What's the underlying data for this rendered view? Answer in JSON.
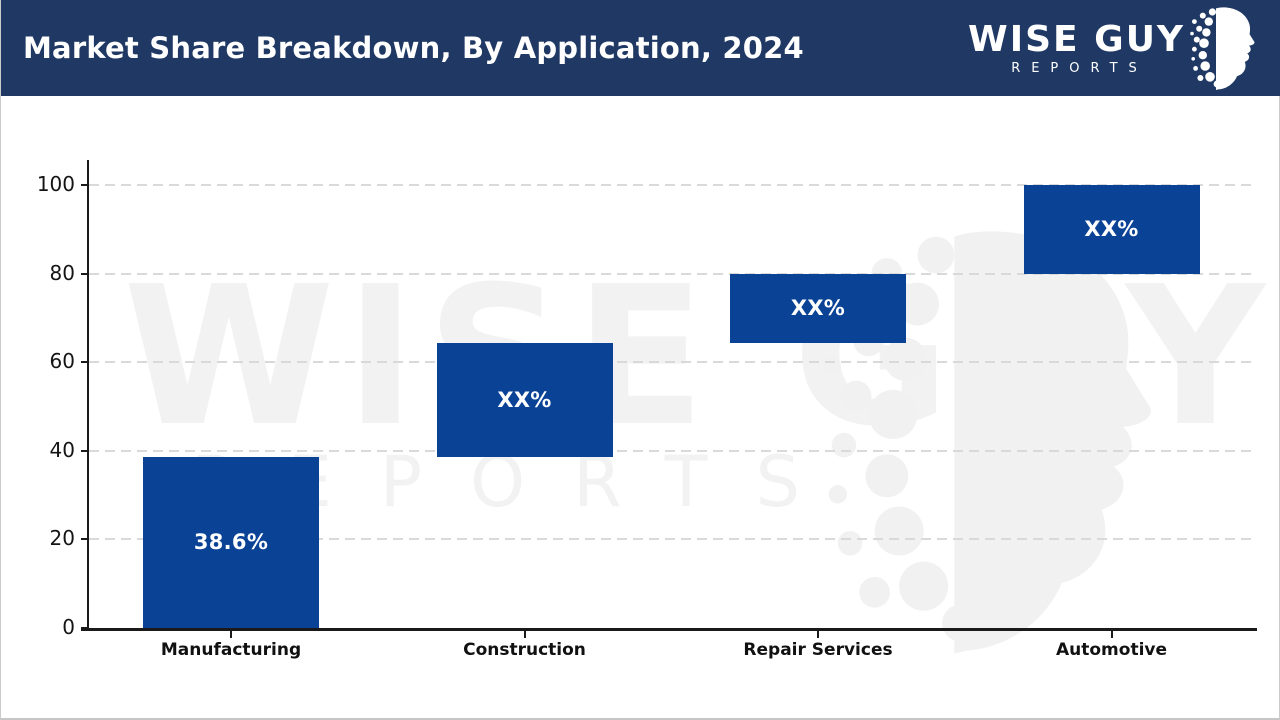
{
  "header": {
    "title": "Market Share Breakdown, By Application, 2024",
    "bg_color": "#1f3964",
    "logo": {
      "line1": "WISE GUY",
      "line2": "REPORTS"
    }
  },
  "watermark": {
    "line1": "WISE GUY",
    "line2": "REPORTS"
  },
  "chart_data": {
    "type": "bar",
    "subtype": "waterfall",
    "title": "Market Share Breakdown, By Application, 2024",
    "categories": [
      "Manufacturing",
      "Construction",
      "Repair Services",
      "Automotive"
    ],
    "segments": [
      {
        "category": "Manufacturing",
        "start": 0,
        "end": 38.6,
        "label": "38.6%"
      },
      {
        "category": "Construction",
        "start": 38.6,
        "end": 64.3,
        "label": "XX%"
      },
      {
        "category": "Repair Services",
        "start": 64.3,
        "end": 80.0,
        "label": "XX%"
      },
      {
        "category": "Automotive",
        "start": 80.0,
        "end": 100,
        "label": "XX%"
      }
    ],
    "xlabel": "",
    "ylabel": "",
    "ylim": [
      0,
      100
    ],
    "yticks": [
      0,
      20,
      40,
      60,
      80,
      100
    ],
    "grid": "horizontal-dashed",
    "legend": "none",
    "bar_color": "#0a4296",
    "bar_label_color": "#ffffff",
    "axis_color": "#1a1a1a",
    "gridline_color": "#d9d9d9"
  }
}
